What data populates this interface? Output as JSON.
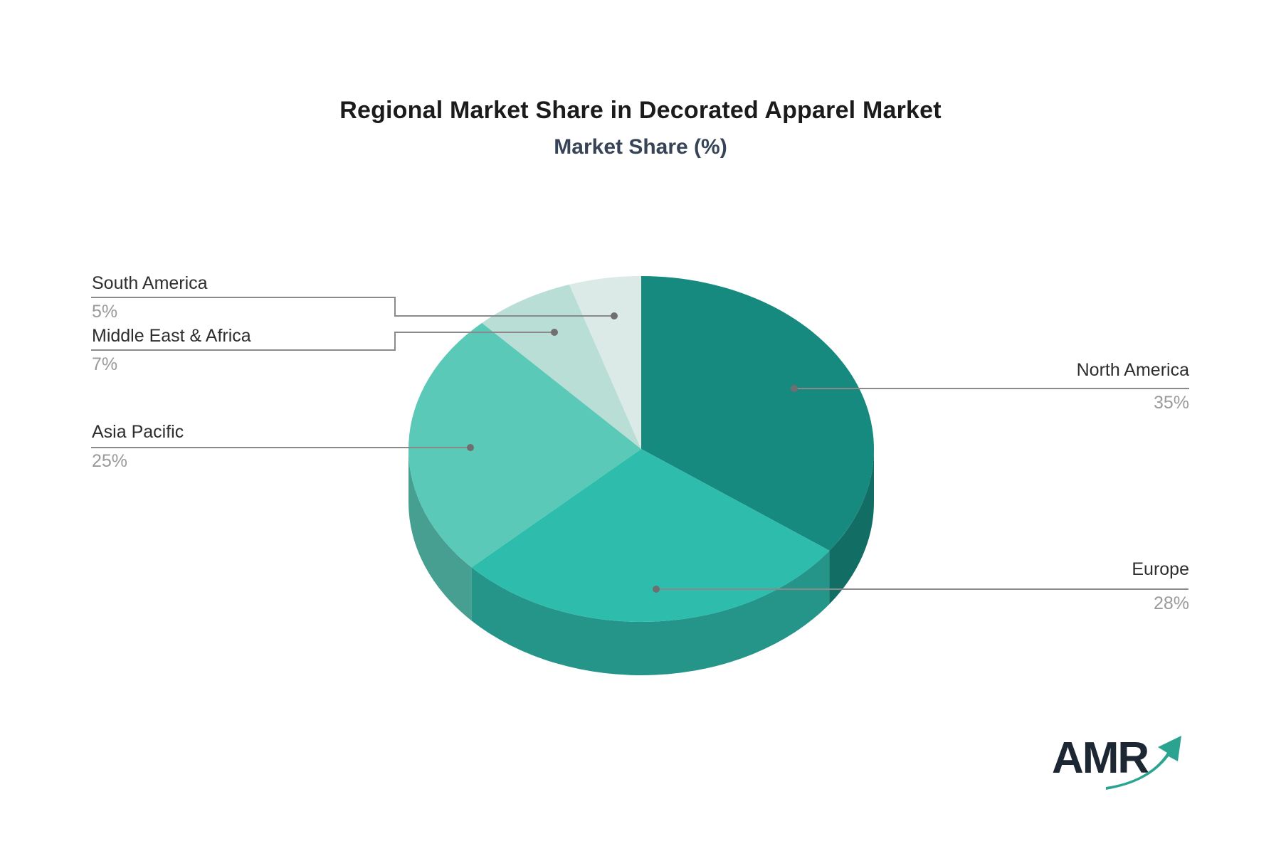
{
  "title": "Regional Market Share in Decorated Apparel Market",
  "subtitle": "Market Share (%)",
  "logo": {
    "text": "AMR"
  },
  "colors": {
    "background": "#ffffff",
    "title": "#1b1b1b",
    "subtitle": "#374457",
    "label_text": "#2e2e2e",
    "value_text": "#9a9a9a",
    "connector_line": "#8a8a8a",
    "connector_dot": "#6f6f6f",
    "logo_text": "#1d2733",
    "logo_arrow": "#2aa491"
  },
  "chart_data": {
    "type": "pie",
    "style": "3d",
    "title": "Regional Market Share in Decorated Apparel Market",
    "subtitle": "Market Share (%)",
    "unit": "%",
    "direction": "clockwise",
    "start_angle_deg": 0,
    "legend": "none, callout labels with leader lines",
    "series": [
      {
        "name": "North America",
        "value": 35,
        "color": "#178a7f",
        "label_side": "right"
      },
      {
        "name": "Europe",
        "value": 28,
        "color": "#2ebdac",
        "label_side": "right"
      },
      {
        "name": "Asia Pacific",
        "value": 25,
        "color": "#5ac9b8",
        "label_side": "left"
      },
      {
        "name": "Middle East & Africa",
        "value": 7,
        "color": "#b9ded6",
        "label_side": "left"
      },
      {
        "name": "South America",
        "value": 5,
        "color": "#dbeae7",
        "label_side": "left"
      }
    ]
  }
}
